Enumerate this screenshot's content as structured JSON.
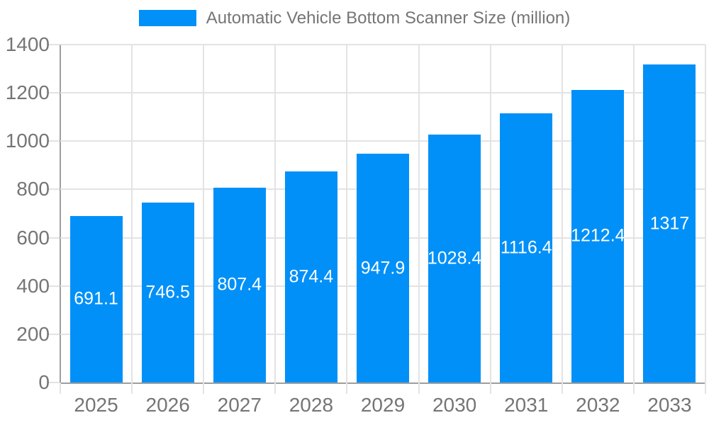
{
  "chart_data": {
    "type": "bar",
    "title": "Automatic Vehicle Bottom Scanner Size (million)",
    "categories": [
      "2025",
      "2026",
      "2027",
      "2028",
      "2029",
      "2030",
      "2031",
      "2032",
      "2033"
    ],
    "values": [
      691.1,
      746.5,
      807.4,
      874.4,
      947.9,
      1028.4,
      1116.4,
      1212.4,
      1317
    ],
    "bar_labels": [
      "691.1",
      "746.5",
      "807.4",
      "874.4",
      "947.9",
      "1028.4",
      "1116.4",
      "1212.4",
      "1317"
    ],
    "xlabel": "",
    "ylabel": "",
    "ylim": [
      0,
      1400
    ],
    "yticks": [
      0,
      200,
      400,
      600,
      800,
      1000,
      1200,
      1400
    ],
    "grid": true,
    "legend_position": "top",
    "legend_entries": [
      "Automatic Vehicle Bottom Scanner Size (million)"
    ]
  },
  "colors": {
    "background": "#ffffff",
    "bar": "#0090f8",
    "grid": "#e3e3e3",
    "axis": "#9e9e9e",
    "tick_text": "#757575",
    "title_text": "#757575",
    "value_text": "#ffffff"
  }
}
